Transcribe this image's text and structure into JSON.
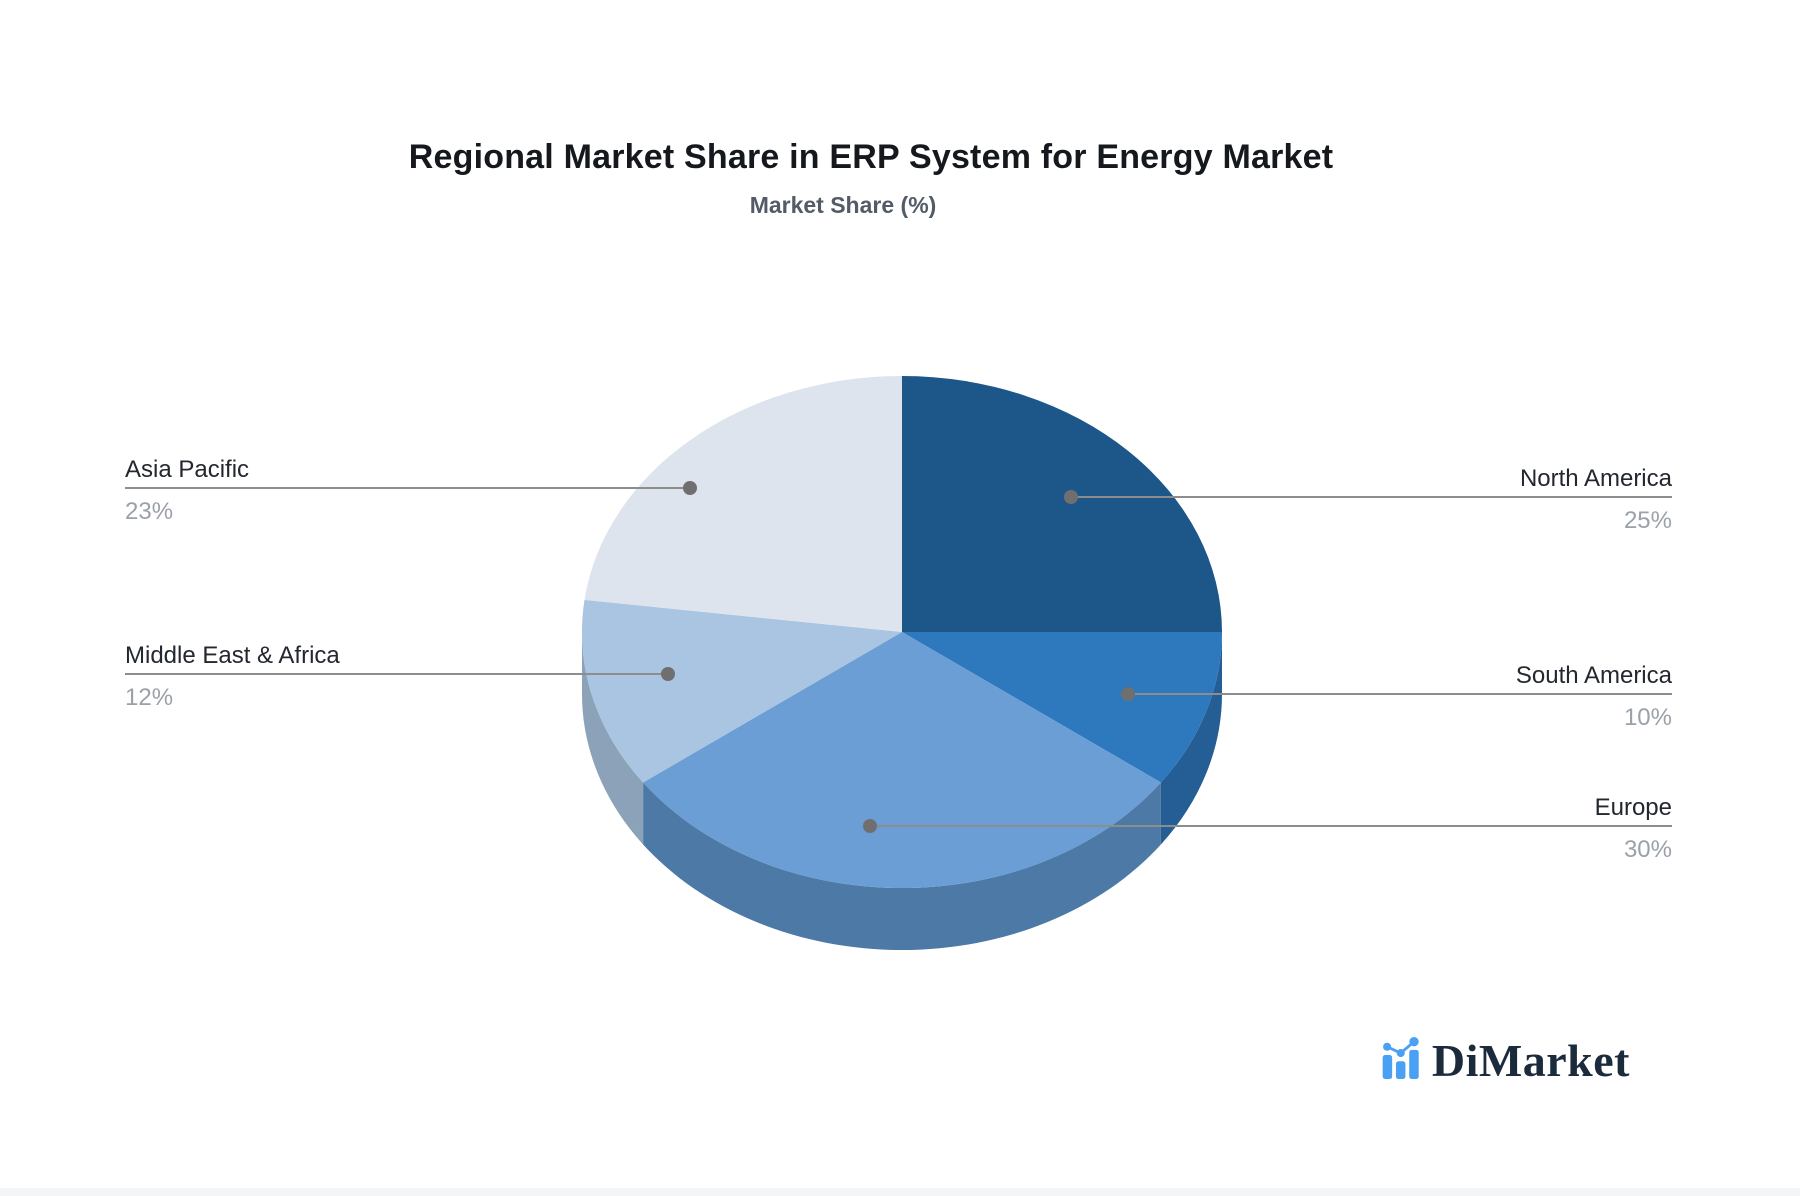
{
  "page": {
    "title": "Regional Market Share in ERP System for Energy Market",
    "subtitle": "Market Share (%)"
  },
  "chart_data": {
    "type": "pie",
    "title": "Regional Market Share in ERP System for Energy Market",
    "subtitle": "Market Share (%)",
    "unit": "percent",
    "style": "3d",
    "start_angle_deg": 0,
    "direction": "clockwise",
    "legend_position": "callout-labels",
    "labels": [
      "North America",
      "South America",
      "Europe",
      "Middle East & Africa",
      "Asia Pacific"
    ],
    "values": [
      25,
      10,
      30,
      12,
      23
    ],
    "display_values": [
      "25%",
      "10%",
      "30%",
      "12%",
      "23%"
    ],
    "colors": [
      "#1d5789",
      "#2e79bd",
      "#6b9ed4",
      "#a9c5e2",
      "#dde4ee"
    ],
    "side_colors": [
      "#16436b",
      "#245e94",
      "#4d79a6",
      "#8ba2b9",
      "#b9c3d2"
    ],
    "leader_line_color": "#8d8d8d",
    "leader_dot_color": "#6f6f6f"
  },
  "branding": {
    "logo_text": "DiMarket",
    "logo_icon": "bar-line-chart-icon",
    "logo_icon_color": "#4aa0f3",
    "logo_text_color": "#1c2b3c"
  }
}
